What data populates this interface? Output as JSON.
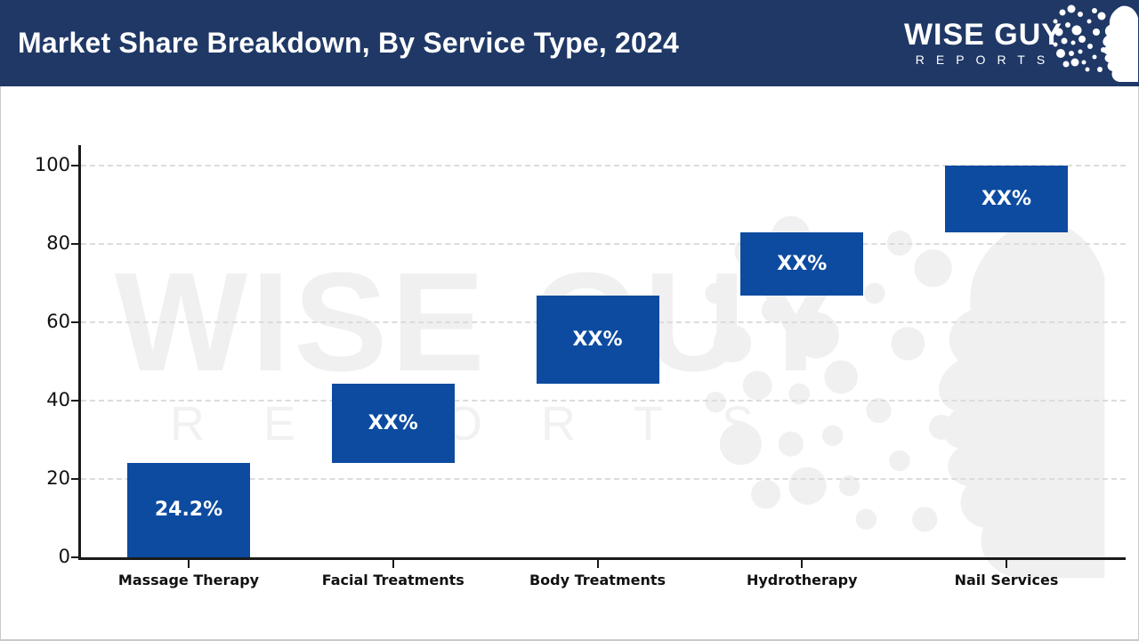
{
  "header": {
    "title": "Market Share Breakdown, By Service Type, 2024",
    "logo": {
      "line1": "WISE GUY",
      "line2": "REPORTS"
    }
  },
  "watermark": {
    "line1": "WISE GUY",
    "line2": "REPORTS"
  },
  "colors": {
    "header_bg": "#1f3866",
    "bar_blue": "#0c4ba0",
    "grid_line": "#dcdcdc",
    "axis_line": "#1a1a1a",
    "watermark_gray": "#f0f0f0",
    "frame_border": "#c9c9c9",
    "bar_label_text": "#ffffff",
    "tick_text": "#111111"
  },
  "chart_data": {
    "type": "bar",
    "variant": "waterfall",
    "title": "Market Share Breakdown, By Service Type, 2024",
    "categories": [
      "Massage Therapy",
      "Facial Treatments",
      "Body Treatments",
      "Hydrotherapy",
      "Nail Services"
    ],
    "series": [
      {
        "name": "Market share (%)",
        "segments": [
          {
            "category": "Massage Therapy",
            "start": 0,
            "end": 24.2,
            "label": "24.2%"
          },
          {
            "category": "Facial Treatments",
            "start": 24.2,
            "end": 44.4,
            "label": "XX%"
          },
          {
            "category": "Body Treatments",
            "start": 44.4,
            "end": 66.8,
            "label": "XX%"
          },
          {
            "category": "Hydrotherapy",
            "start": 66.8,
            "end": 83.0,
            "label": "XX%"
          },
          {
            "category": "Nail Services",
            "start": 83.0,
            "end": 100.0,
            "label": "XX%"
          }
        ]
      }
    ],
    "xlabel": "",
    "ylabel": "",
    "yticks": [
      0,
      20,
      40,
      60,
      80,
      100
    ],
    "ylim": [
      0,
      105
    ],
    "grid": {
      "horizontal": true,
      "style": "dashed"
    },
    "legend": null,
    "bar_color": "#0c4ba0"
  }
}
